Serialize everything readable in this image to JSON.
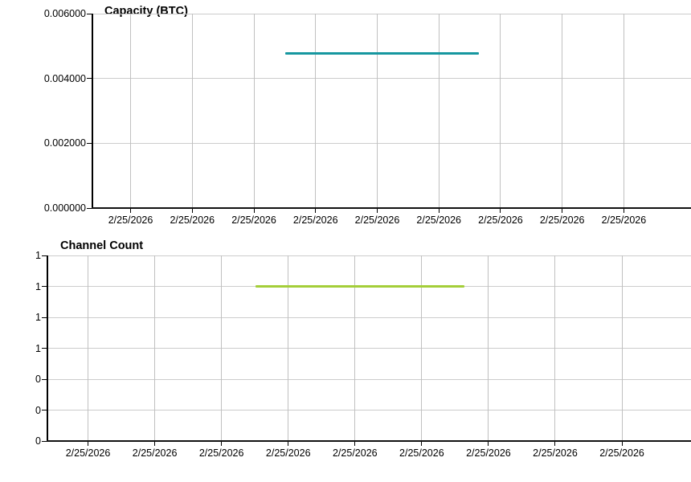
{
  "chart_data": [
    {
      "type": "line",
      "title": "Capacity (BTC)",
      "xlabel": "",
      "ylabel": "",
      "grid": true,
      "legend_position": "none",
      "ylim": [
        0,
        0.006
      ],
      "y_tick_values": [
        0.006,
        0.004,
        0.002,
        0
      ],
      "y_tick_labels": [
        "0.006000",
        "0.004000",
        "0.002000",
        "0.000000"
      ],
      "x_tick_labels": [
        "2/25/2026",
        "2/25/2026",
        "2/25/2026",
        "2/25/2026",
        "2/25/2026",
        "2/25/2026",
        "2/25/2026",
        "2/25/2026",
        "2/25/2026"
      ],
      "series": [
        {
          "name": "Capacity",
          "color": "#1697a0",
          "shape": "constant-horizontal-segment",
          "value": 0.00478,
          "x_start_frac": 0.322,
          "x_end_frac": 0.645
        }
      ]
    },
    {
      "type": "line",
      "title": "Channel Count",
      "xlabel": "",
      "ylabel": "",
      "grid": true,
      "legend_position": "none",
      "ylim": [
        0,
        1.2
      ],
      "y_tick_values": [
        1.2,
        1.0,
        0.8,
        0.6,
        0.4,
        0.2,
        0
      ],
      "y_tick_labels": [
        "1",
        "1",
        "1",
        "1",
        "0",
        "0",
        "0"
      ],
      "x_tick_labels": [
        "2/25/2026",
        "2/25/2026",
        "2/25/2026",
        "2/25/2026",
        "2/25/2026",
        "2/25/2026",
        "2/25/2026",
        "2/25/2026",
        "2/25/2026"
      ],
      "series": [
        {
          "name": "Channel Count",
          "color": "#a4ce39",
          "shape": "constant-horizontal-segment",
          "value": 1,
          "x_start_frac": 0.323,
          "x_end_frac": 0.648
        }
      ]
    }
  ]
}
